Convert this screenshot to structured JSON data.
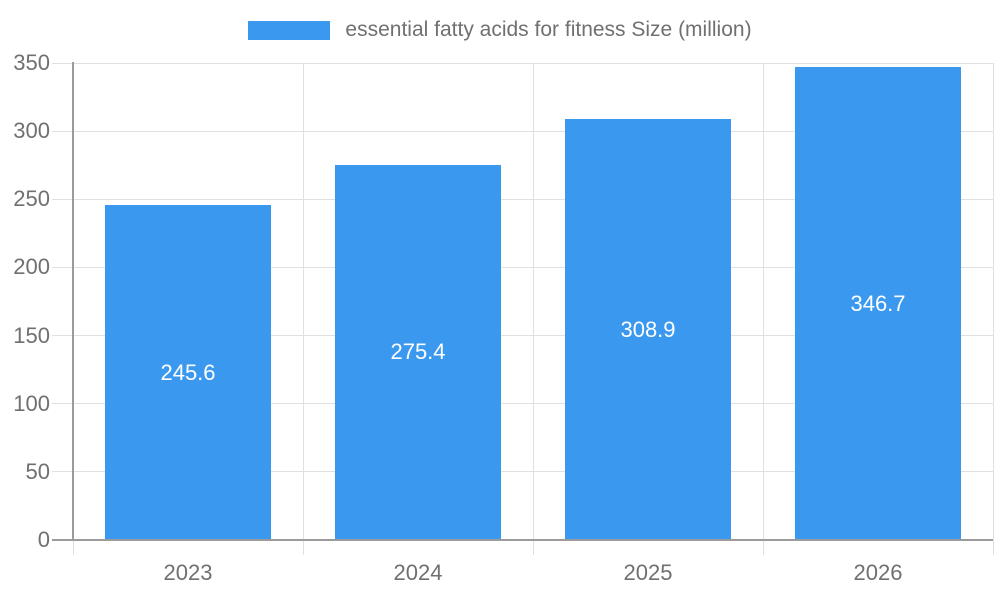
{
  "chart_data": {
    "type": "bar",
    "title": "essential fatty acids for fitness Size (million)",
    "legend": [
      {
        "label": "essential fatty acids for fitness Size (million)"
      }
    ],
    "legend_position": "top-center",
    "categories": [
      "2023",
      "2024",
      "2025",
      "2026"
    ],
    "series": [
      {
        "name": "essential fatty acids for fitness Size (million)",
        "values": [
          245.6,
          275.4,
          308.9,
          346.7
        ],
        "value_labels": [
          "245.6",
          "275.4",
          "308.9",
          "346.7"
        ]
      }
    ],
    "xlabel": "",
    "ylabel": "",
    "ylim": [
      0,
      350
    ],
    "ytick_step": 50,
    "yticks": [
      "0",
      "50",
      "100",
      "150",
      "200",
      "250",
      "300",
      "350"
    ],
    "grid": true,
    "value_labels_position": "inside-center",
    "colors": {
      "bar": "#3a99ee",
      "axis_line": "#9b9b9b",
      "gridline": "#e0e0e0",
      "tick_label_text": "#707070",
      "legend_text": "#707070",
      "value_label_text": "#ffffff",
      "background": "#ffffff"
    }
  }
}
